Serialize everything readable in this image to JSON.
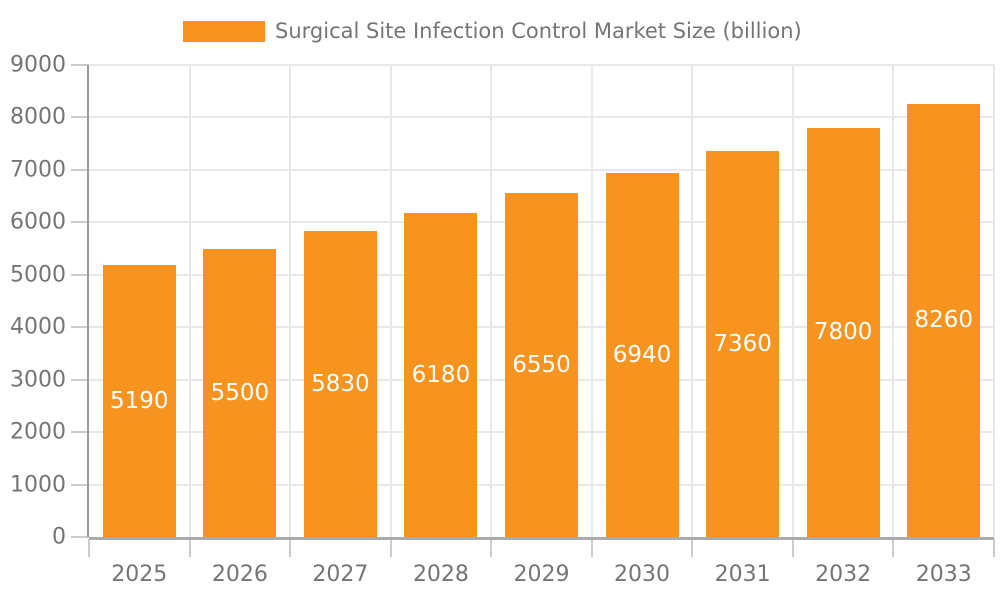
{
  "legend": {
    "label": "Surgical Site Infection Control Market Size (billion)",
    "swatch_color": "#F79420"
  },
  "chart_data": {
    "type": "bar",
    "title": "Surgical Site Infection Control Market Size (billion)",
    "categories": [
      "2025",
      "2026",
      "2027",
      "2028",
      "2029",
      "2030",
      "2031",
      "2032",
      "2033"
    ],
    "values": [
      5190,
      5500,
      5830,
      6180,
      6550,
      6940,
      7360,
      7800,
      8260
    ],
    "value_labels": [
      "5190",
      "5500",
      "5830",
      "6180",
      "6550",
      "6940",
      "7360",
      "7800",
      "8260"
    ],
    "xlabel": "",
    "ylabel": "",
    "ylim": [
      0,
      9000
    ],
    "ytick_step": 1000,
    "yticks": [
      0,
      1000,
      2000,
      3000,
      4000,
      5000,
      6000,
      7000,
      8000,
      9000
    ],
    "grid": true,
    "legend_position": "top",
    "bar_color": "#F79420",
    "value_label_color": "#FFFFFF",
    "axis_text_color": "#757575",
    "grid_color": "#E8E8E8"
  }
}
